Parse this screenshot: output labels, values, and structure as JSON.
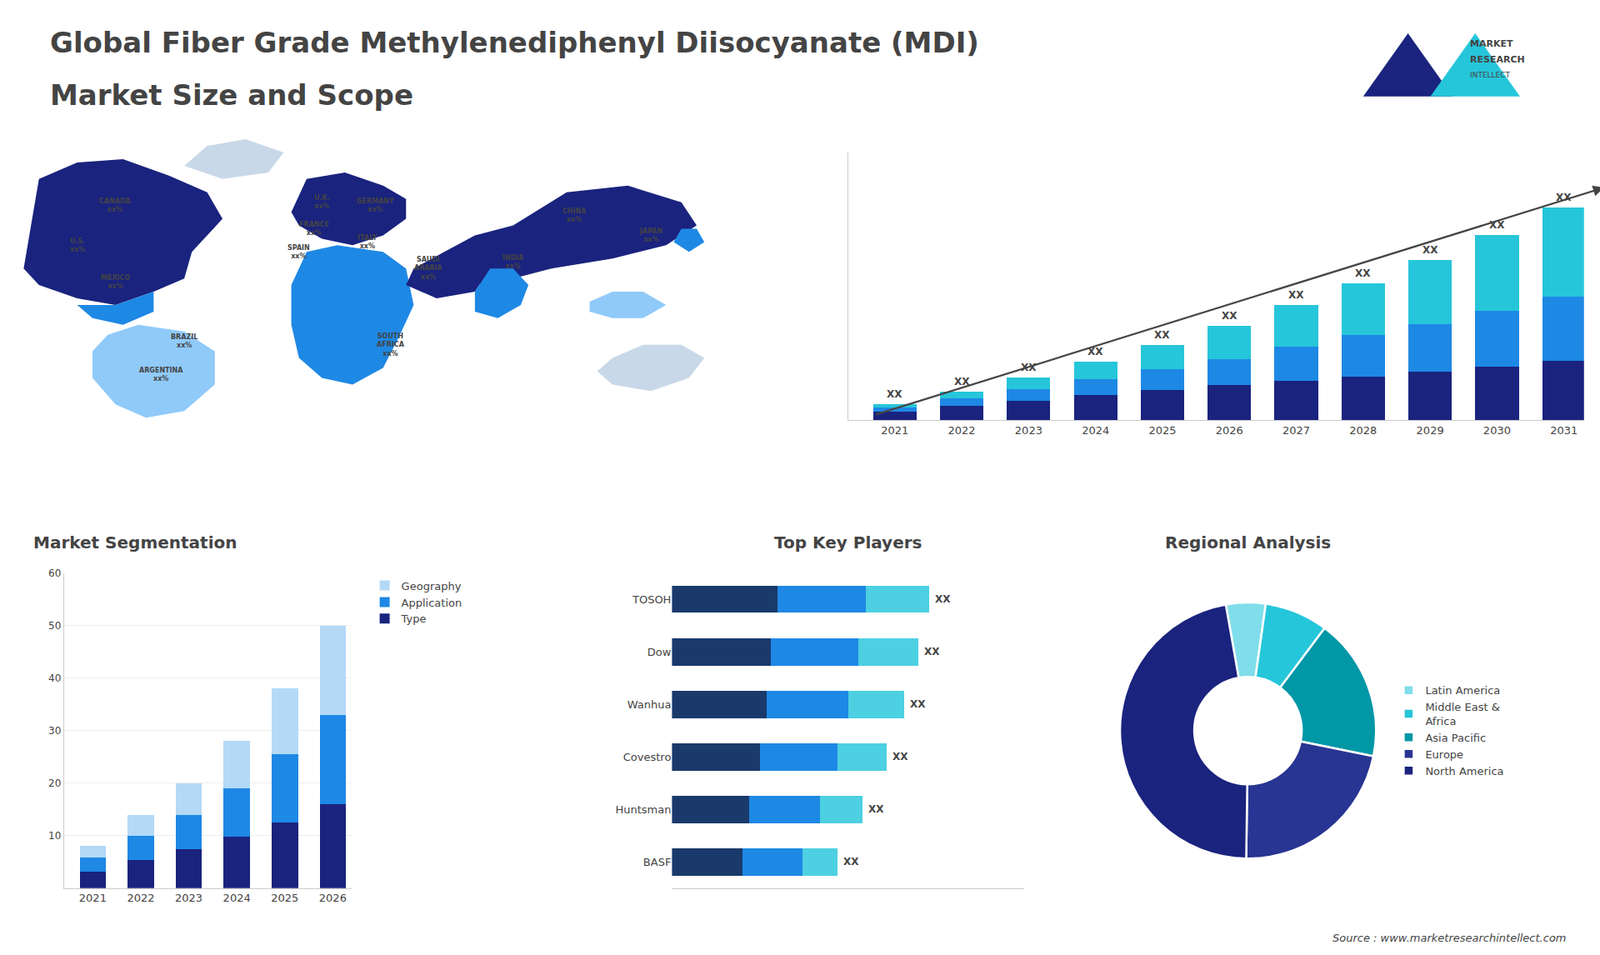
{
  "title": "Global Fiber Grade Methylenediphenyl Diisocyanate (MDI)",
  "subtitle": "Market Size and Scope",
  "annotations": [
    "MARKET",
    "RESEARCH",
    "INTELLECT",
    "Source : www.marketresearchintellect.com"
  ],
  "colors": [
    "#1a237e",
    "#26c6da"
  ],
  "chart_data": [
    {
      "type": "map",
      "annotations": [
        "CANADA\nxx%",
        "U.S.\nxx%",
        "MEXICO\nxx%",
        "BRAZIL\nxx%",
        "ARGENTINA\nxx%",
        "U.K.\nxx%",
        "FRANCE\nxx%",
        "SPAIN\nxx%",
        "GERMANY\nxx%",
        "ITALY\nxx%",
        "SAUDI\nARABIA\nxx%",
        "SOUTH\nAFRICA\nxx%",
        "CHINA\nxx%",
        "INDIA\nxx%",
        "JAPAN\nxx%"
      ],
      "colors": [
        "#1a237e",
        "#1e88e5",
        "#90caf9",
        "#1a237e",
        "#1e88e5",
        "#1a237e",
        "#1a237e",
        "#1e88e5",
        "#90caf9",
        "#c8d8e8",
        "#c8d8e8",
        "#1e88e5"
      ]
    },
    {
      "type": "bar",
      "stacked": true,
      "categories": [
        2021,
        2022,
        2023,
        2024,
        2025,
        2026,
        2027,
        2028,
        2029,
        2030,
        2031
      ],
      "series": [
        {
          "color": "#1a237e",
          "values": [
            0.55,
            0.9,
            1.242,
            1.591,
            1.92,
            2.22,
            2.482,
            2.784,
            3.06,
            3.422,
            3.78
          ]
        },
        {
          "color": "#1e88e5",
          "values": [
            0.28,
            0.504,
            0.756,
            1.036,
            1.344,
            1.68,
            2.19,
            2.61,
            3.06,
            3.54,
            4.05
          ]
        },
        {
          "color": "#26c6da",
          "values": [
            0.17,
            0.396,
            0.702,
            1.073,
            1.536,
            2.1,
            2.628,
            3.306,
            4.08,
            4.838,
            5.67
          ]
        }
      ],
      "ylim": [
        0,
        17
      ],
      "tick_labels": "x",
      "grid": false,
      "annotations": [
        "XX",
        "XX",
        "XX",
        "XX",
        "XX",
        "XX",
        "XX",
        "XX",
        "XX",
        "XX",
        "XX"
      ]
    },
    {
      "type": "bar",
      "title": "Market Segmentation",
      "stacked": true,
      "categories": [
        2021,
        2022,
        2023,
        2024,
        2025,
        2026
      ],
      "series": [
        {
          "name": "Type",
          "color": "#1a237e",
          "values": [
            3.2,
            5.32,
            7.4,
            9.8,
            12.54,
            16
          ]
        },
        {
          "name": "Application",
          "color": "#1e88e5",
          "values": [
            2.56,
            4.62,
            6.6,
            9.24,
            12.92,
            17
          ]
        },
        {
          "name": "Geography",
          "color": "#b3d9f7",
          "values": [
            2.24,
            4.06,
            6.0,
            8.96,
            12.54,
            17
          ]
        }
      ],
      "ylim": [
        0,
        60
      ],
      "yticks": [
        10,
        20,
        30,
        40,
        50,
        60
      ],
      "grid": true,
      "legend": "right"
    },
    {
      "type": "bar",
      "title": "Top Key Players",
      "orientation": "horizontal",
      "stacked": true,
      "categories": [
        "TOSOH",
        "Dow",
        "Wanhua",
        "Covestro",
        "Huntsman",
        "BASF"
      ],
      "series": [
        {
          "color": "#1a3a6b",
          "values": [
            0.3,
            0.28,
            0.27,
            0.25,
            0.22,
            0.2
          ]
        },
        {
          "color": "#1e88e5",
          "values": [
            0.25,
            0.25,
            0.23,
            0.22,
            0.2,
            0.17
          ]
        },
        {
          "color": "#4dd0e1",
          "values": [
            0.18,
            0.17,
            0.16,
            0.14,
            0.12,
            0.1
          ]
        }
      ],
      "xlim": [
        0,
        1.0
      ],
      "tick_labels": "y",
      "grid": false,
      "annotations": [
        "XX",
        "XX",
        "XX",
        "XX",
        "XX",
        "XX"
      ]
    },
    {
      "type": "pie",
      "title": "Regional Analysis",
      "categories": [
        "Latin America",
        "Middle East &\nAfrica",
        "Asia Pacific",
        "Europe",
        "North America"
      ],
      "values": [
        5,
        8,
        18,
        22,
        47
      ],
      "colors": [
        "#80deea",
        "#26c6da",
        "#0097a7",
        "#283593",
        "#1a237e"
      ],
      "legend": "right"
    }
  ]
}
